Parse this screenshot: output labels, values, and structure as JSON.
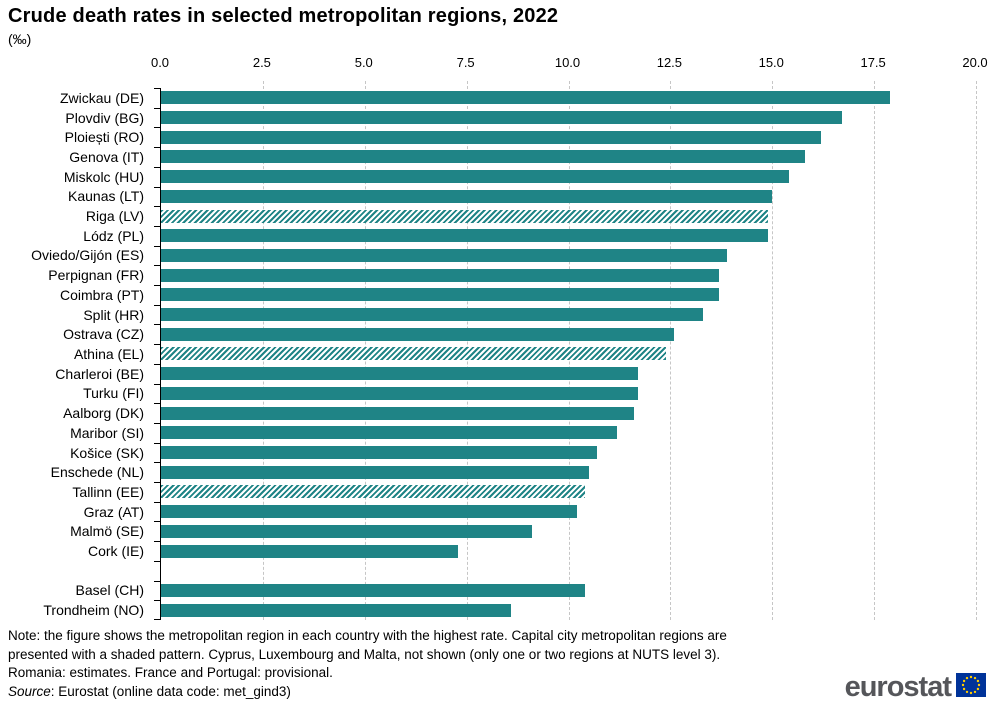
{
  "header": {
    "title": "Crude death rates in selected metropolitan regions, 2022",
    "subtitle": "(‰)"
  },
  "chart_data": {
    "type": "bar",
    "orientation": "horizontal",
    "title": "Crude death rates in selected metropolitan regions, 2022",
    "unit_label": "(‰)",
    "xlim": [
      0,
      20
    ],
    "xmax": 20,
    "x_ticks": [
      "0.0",
      "2.5",
      "5.0",
      "7.5",
      "10.0",
      "12.5",
      "15.0",
      "17.5",
      "20.0"
    ],
    "grid": "vertical-dashed",
    "legend_position": "none",
    "bar_color": "#1F8486",
    "hatched_meaning": "capital city metropolitan region (shaded pattern)",
    "rows": [
      {
        "label": "Zwickau (DE)",
        "value": 17.9,
        "hatched": false
      },
      {
        "label": "Plovdiv (BG)",
        "value": 16.7,
        "hatched": false
      },
      {
        "label": "Ploiești (RO)",
        "value": 16.2,
        "hatched": false
      },
      {
        "label": "Genova (IT)",
        "value": 15.8,
        "hatched": false
      },
      {
        "label": "Miskolc (HU)",
        "value": 15.4,
        "hatched": false
      },
      {
        "label": "Kaunas (LT)",
        "value": 15.0,
        "hatched": false
      },
      {
        "label": "Riga (LV)",
        "value": 14.9,
        "hatched": true
      },
      {
        "label": "Lódz (PL)",
        "value": 14.9,
        "hatched": false
      },
      {
        "label": "Oviedo/Gijón (ES)",
        "value": 13.9,
        "hatched": false
      },
      {
        "label": "Perpignan (FR)",
        "value": 13.7,
        "hatched": false
      },
      {
        "label": "Coimbra (PT)",
        "value": 13.7,
        "hatched": false
      },
      {
        "label": "Split (HR)",
        "value": 13.3,
        "hatched": false
      },
      {
        "label": "Ostrava (CZ)",
        "value": 12.6,
        "hatched": false
      },
      {
        "label": "Athina (EL)",
        "value": 12.4,
        "hatched": true
      },
      {
        "label": "Charleroi (BE)",
        "value": 11.7,
        "hatched": false
      },
      {
        "label": "Turku (FI)",
        "value": 11.7,
        "hatched": false
      },
      {
        "label": "Aalborg (DK)",
        "value": 11.6,
        "hatched": false
      },
      {
        "label": "Maribor (SI)",
        "value": 11.2,
        "hatched": false
      },
      {
        "label": "Košice (SK)",
        "value": 10.7,
        "hatched": false
      },
      {
        "label": "Enschede (NL)",
        "value": 10.5,
        "hatched": false
      },
      {
        "label": "Tallinn (EE)",
        "value": 10.4,
        "hatched": true
      },
      {
        "label": "Graz (AT)",
        "value": 10.2,
        "hatched": false
      },
      {
        "label": "Malmö (SE)",
        "value": 9.1,
        "hatched": false
      },
      {
        "label": "Cork (IE)",
        "value": 7.3,
        "hatched": false
      },
      {
        "label": "",
        "value": null,
        "spacer": true
      },
      {
        "label": "Basel (CH)",
        "value": 10.4,
        "hatched": false
      },
      {
        "label": "Trondheim (NO)",
        "value": 8.6,
        "hatched": false
      }
    ]
  },
  "note": {
    "lines": [
      "Note: the figure shows the metropolitan region in each country with the highest rate. Capital city metropolitan regions are",
      "presented with a shaded pattern. Cyprus, Luxembourg and Malta, not shown (only one or two regions at NUTS level 3).",
      "Romania: estimates. France and Portugal: provisional."
    ]
  },
  "source": {
    "label_italic": "Source",
    "rest": ": Eurostat (online data code: met_gind3)"
  },
  "logo": {
    "text": "eurostat",
    "text_color": "#55565a",
    "flag_color": "#003399",
    "star_color": "#FFCC00"
  }
}
